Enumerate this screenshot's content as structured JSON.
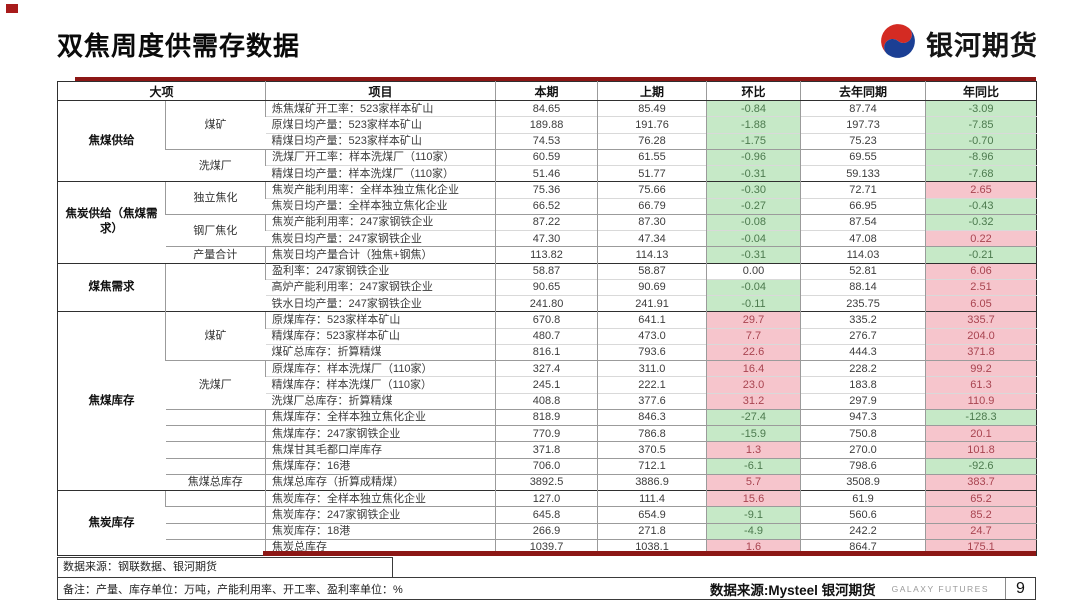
{
  "slide": {
    "title": "双焦周度供需存数据",
    "brand": {
      "name": "银河期货",
      "name_en": "GALAXY FUTURES"
    },
    "page_number": "9",
    "footer": {
      "source_line": "数据来源：钢联数据、银河期货",
      "note_line": "备注：产量、库存单位：万吨，产能利用率、开工率、盈利率单位：%",
      "bottom_source": "数据来源:Mysteel 银河期货"
    },
    "colors": {
      "accent_maroon": "#8c1715",
      "increase_fill": "#f6c5cc",
      "increase_text": "#a84450",
      "decrease_fill": "#c6e9c7",
      "decrease_text": "#4c7a4e",
      "logo_red": "#d42b23",
      "logo_blue": "#1b3f94"
    }
  },
  "table": {
    "headers": [
      "大项",
      "项目",
      "本期",
      "上期",
      "环比",
      "去年同期",
      "年同比"
    ],
    "sections": [
      {
        "group": "焦煤供给",
        "subgroups": [
          {
            "label": "煤矿",
            "rows": [
              {
                "item": "炼焦煤矿开工率：523家样本矿山",
                "current": "84.65",
                "prev": "85.49",
                "mom": "-0.84",
                "mom_state": "down",
                "last_year": "87.74",
                "yoy": "-3.09",
                "yoy_state": "down"
              },
              {
                "item": "原煤日均产量：523家样本矿山",
                "current": "189.88",
                "prev": "191.76",
                "mom": "-1.88",
                "mom_state": "down",
                "last_year": "197.73",
                "yoy": "-7.85",
                "yoy_state": "down"
              },
              {
                "item": "精煤日均产量：523家样本矿山",
                "current": "74.53",
                "prev": "76.28",
                "mom": "-1.75",
                "mom_state": "down",
                "last_year": "75.23",
                "yoy": "-0.70",
                "yoy_state": "down"
              }
            ]
          },
          {
            "label": "洗煤厂",
            "rows": [
              {
                "item": "洗煤厂开工率：样本洗煤厂（110家）",
                "current": "60.59",
                "prev": "61.55",
                "mom": "-0.96",
                "mom_state": "down",
                "last_year": "69.55",
                "yoy": "-8.96",
                "yoy_state": "down"
              },
              {
                "item": "精煤日均产量：样本洗煤厂（110家）",
                "current": "51.46",
                "prev": "51.77",
                "mom": "-0.31",
                "mom_state": "down",
                "last_year": "59.133",
                "yoy": "-7.68",
                "yoy_state": "down"
              }
            ]
          }
        ]
      },
      {
        "group": "焦炭供给（焦煤需求）",
        "subgroups": [
          {
            "label": "独立焦化",
            "rows": [
              {
                "item": "焦炭产能利用率：全样本独立焦化企业",
                "current": "75.36",
                "prev": "75.66",
                "mom": "-0.30",
                "mom_state": "down",
                "last_year": "72.71",
                "yoy": "2.65",
                "yoy_state": "up"
              },
              {
                "item": "焦炭日均产量：全样本独立焦化企业",
                "current": "66.52",
                "prev": "66.79",
                "mom": "-0.27",
                "mom_state": "down",
                "last_year": "66.95",
                "yoy": "-0.43",
                "yoy_state": "down"
              }
            ]
          },
          {
            "label": "钢厂焦化",
            "rows": [
              {
                "item": "焦炭产能利用率：247家钢铁企业",
                "current": "87.22",
                "prev": "87.30",
                "mom": "-0.08",
                "mom_state": "down",
                "last_year": "87.54",
                "yoy": "-0.32",
                "yoy_state": "down"
              },
              {
                "item": "焦炭日均产量：247家钢铁企业",
                "current": "47.30",
                "prev": "47.34",
                "mom": "-0.04",
                "mom_state": "down",
                "last_year": "47.08",
                "yoy": "0.22",
                "yoy_state": "up"
              }
            ]
          },
          {
            "label": "产量合计",
            "rows": [
              {
                "item": "焦炭日均产量合计（独焦+钢焦）",
                "current": "113.82",
                "prev": "114.13",
                "mom": "-0.31",
                "mom_state": "down",
                "last_year": "114.03",
                "yoy": "-0.21",
                "yoy_state": "down"
              }
            ]
          }
        ]
      },
      {
        "group": "煤焦需求",
        "subgroups": [
          {
            "label": "",
            "rows": [
              {
                "item": "盈利率：247家钢铁企业",
                "current": "58.87",
                "prev": "58.87",
                "mom": "0.00",
                "mom_state": "flat",
                "last_year": "52.81",
                "yoy": "6.06",
                "yoy_state": "up"
              },
              {
                "item": "高炉产能利用率：247家钢铁企业",
                "current": "90.65",
                "prev": "90.69",
                "mom": "-0.04",
                "mom_state": "down",
                "last_year": "88.14",
                "yoy": "2.51",
                "yoy_state": "up"
              },
              {
                "item": "铁水日均产量：247家钢铁企业",
                "current": "241.80",
                "prev": "241.91",
                "mom": "-0.11",
                "mom_state": "down",
                "last_year": "235.75",
                "yoy": "6.05",
                "yoy_state": "up"
              }
            ]
          }
        ]
      },
      {
        "group": "焦煤库存",
        "subgroups": [
          {
            "label": "煤矿",
            "rows": [
              {
                "item": "原煤库存：523家样本矿山",
                "current": "670.8",
                "prev": "641.1",
                "mom": "29.7",
                "mom_state": "up",
                "last_year": "335.2",
                "yoy": "335.7",
                "yoy_state": "up"
              },
              {
                "item": "精煤库存：523家样本矿山",
                "current": "480.7",
                "prev": "473.0",
                "mom": "7.7",
                "mom_state": "up",
                "last_year": "276.7",
                "yoy": "204.0",
                "yoy_state": "up"
              },
              {
                "item": "煤矿总库存：折算精煤",
                "current": "816.1",
                "prev": "793.6",
                "mom": "22.6",
                "mom_state": "up",
                "last_year": "444.3",
                "yoy": "371.8",
                "yoy_state": "up"
              }
            ]
          },
          {
            "label": "洗煤厂",
            "rows": [
              {
                "item": "原煤库存：样本洗煤厂（110家）",
                "current": "327.4",
                "prev": "311.0",
                "mom": "16.4",
                "mom_state": "up",
                "last_year": "228.2",
                "yoy": "99.2",
                "yoy_state": "up"
              },
              {
                "item": "精煤库存：样本洗煤厂（110家）",
                "current": "245.1",
                "prev": "222.1",
                "mom": "23.0",
                "mom_state": "up",
                "last_year": "183.8",
                "yoy": "61.3",
                "yoy_state": "up"
              },
              {
                "item": "洗煤厂总库存：折算精煤",
                "current": "408.8",
                "prev": "377.6",
                "mom": "31.2",
                "mom_state": "up",
                "last_year": "297.9",
                "yoy": "110.9",
                "yoy_state": "up"
              }
            ]
          },
          {
            "label": "",
            "rows": [
              {
                "item": "焦煤库存：全样本独立焦化企业",
                "current": "818.9",
                "prev": "846.3",
                "mom": "-27.4",
                "mom_state": "down",
                "last_year": "947.3",
                "yoy": "-128.3",
                "yoy_state": "down"
              }
            ]
          },
          {
            "label": "",
            "rows": [
              {
                "item": "焦煤库存：247家钢铁企业",
                "current": "770.9",
                "prev": "786.8",
                "mom": "-15.9",
                "mom_state": "down",
                "last_year": "750.8",
                "yoy": "20.1",
                "yoy_state": "up"
              }
            ]
          },
          {
            "label": "",
            "rows": [
              {
                "item": "焦煤甘其毛都口岸库存",
                "current": "371.8",
                "prev": "370.5",
                "mom": "1.3",
                "mom_state": "up",
                "last_year": "270.0",
                "yoy": "101.8",
                "yoy_state": "up"
              }
            ]
          },
          {
            "label": "",
            "rows": [
              {
                "item": "焦煤库存：16港",
                "current": "706.0",
                "prev": "712.1",
                "mom": "-6.1",
                "mom_state": "down",
                "last_year": "798.6",
                "yoy": "-92.6",
                "yoy_state": "down"
              }
            ]
          },
          {
            "label": "焦煤总库存",
            "rows": [
              {
                "item": "焦煤总库存（折算成精煤）",
                "current": "3892.5",
                "prev": "3886.9",
                "mom": "5.7",
                "mom_state": "up",
                "last_year": "3508.9",
                "yoy": "383.7",
                "yoy_state": "up"
              }
            ]
          }
        ]
      },
      {
        "group": "焦炭库存",
        "subgroups": [
          {
            "label": "",
            "rows": [
              {
                "item": "焦炭库存：全样本独立焦化企业",
                "current": "127.0",
                "prev": "111.4",
                "mom": "15.6",
                "mom_state": "up",
                "last_year": "61.9",
                "yoy": "65.2",
                "yoy_state": "up"
              }
            ]
          },
          {
            "label": "",
            "rows": [
              {
                "item": "焦炭库存：247家钢铁企业",
                "current": "645.8",
                "prev": "654.9",
                "mom": "-9.1",
                "mom_state": "down",
                "last_year": "560.6",
                "yoy": "85.2",
                "yoy_state": "up"
              }
            ]
          },
          {
            "label": "",
            "rows": [
              {
                "item": "焦炭库存：18港",
                "current": "266.9",
                "prev": "271.8",
                "mom": "-4.9",
                "mom_state": "down",
                "last_year": "242.2",
                "yoy": "24.7",
                "yoy_state": "up"
              }
            ]
          },
          {
            "label": "",
            "rows": [
              {
                "item": "焦炭总库存",
                "current": "1039.7",
                "prev": "1038.1",
                "mom": "1.6",
                "mom_state": "up",
                "last_year": "864.7",
                "yoy": "175.1",
                "yoy_state": "up"
              }
            ]
          }
        ]
      }
    ]
  }
}
